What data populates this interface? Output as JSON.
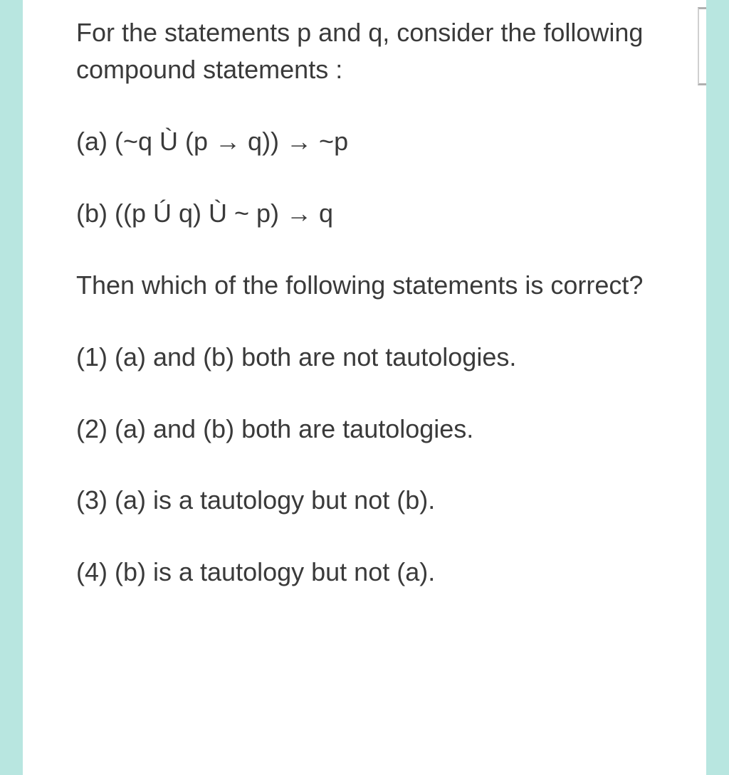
{
  "colors": {
    "page_bg": "#ffffff",
    "outer_bg": "#b8e6e0",
    "text": "#3a3a3a"
  },
  "typography": {
    "font_family": "Segoe UI, Trebuchet MS, Arial, sans-serif",
    "font_size_pt": 27,
    "line_height": 1.45
  },
  "question": {
    "intro": "For the statements p and q, consider the following compound statements :",
    "statements": {
      "a": "(a) (~q Ù (p → q)) → ~p",
      "b": "(b) ((p Ú q) Ù ~ p) → q"
    },
    "follow": "Then which of the following statements is correct?",
    "options": {
      "1": "(1) (a) and (b) both are not tautologies.",
      "2": "(2) (a) and (b) both are tautologies.",
      "3": "(3) (a) is a tautology but not (b).",
      "4": "(4) (b) is a tautology but not (a)."
    }
  }
}
